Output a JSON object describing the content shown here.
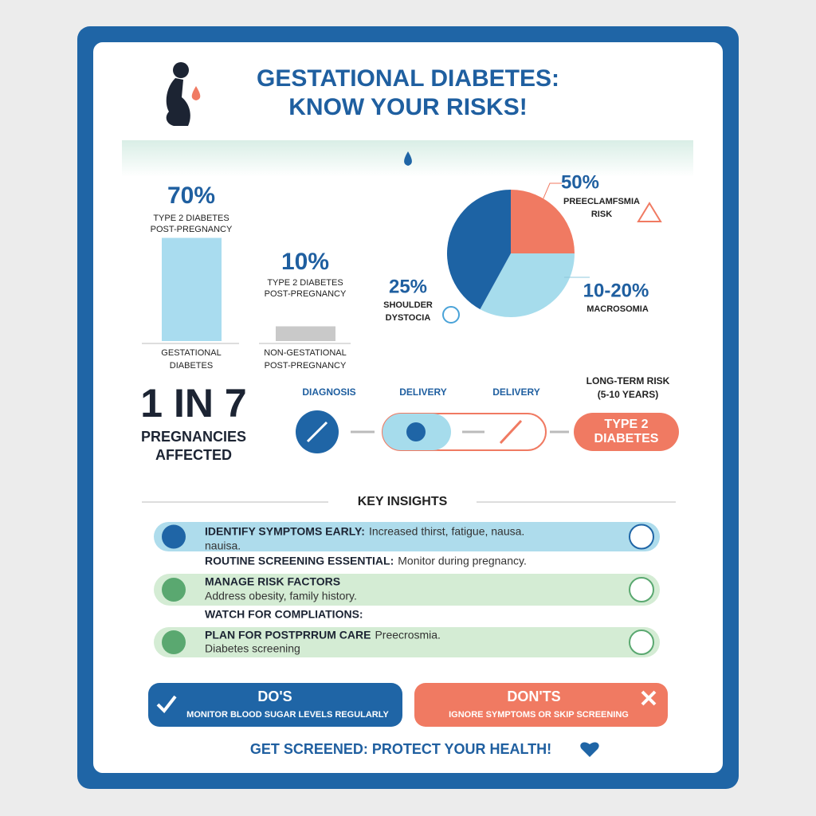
{
  "header": {
    "title_lines": [
      "GESTATIONAL DIABETES:",
      "KNOW YOUR RISKS!"
    ]
  },
  "bar_chart": {
    "type": "bar",
    "ylim": [
      0,
      100
    ],
    "bars": [
      {
        "value": 70,
        "value_label": "70%",
        "caption": [
          "TYPE 2 DIABETES",
          "POST-PREGNANCY"
        ],
        "category": [
          "GESTATIONAL",
          "DIABETES"
        ],
        "color": "#a9dcef"
      },
      {
        "value": 10,
        "value_label": "10%",
        "caption": [
          "TYPE 2 DIABETES",
          "POST-PREGNANCY"
        ],
        "category": [
          "NON-GESTATIONAL",
          "POST-PREGNANCY"
        ],
        "color": "#c9c9c9"
      }
    ]
  },
  "pie_chart": {
    "type": "pie",
    "slices": [
      {
        "value": 25,
        "color": "#f07a62"
      },
      {
        "value": 33,
        "color": "#a6dcec"
      },
      {
        "value": 42,
        "color": "#1d63a4"
      }
    ],
    "annotations": [
      {
        "value_label": "50%",
        "lines": [
          "PREECLAMFSMIA",
          "RISK"
        ]
      },
      {
        "value_label": "10-20%",
        "lines": [
          "MACROSOMIA"
        ]
      },
      {
        "value_label": "25%",
        "lines": [
          "SHOULDER",
          "DYSTOCIA"
        ]
      }
    ]
  },
  "stat": {
    "big": "1 IN 7",
    "lines": [
      "PREGNANCIES",
      "AFFECTED"
    ]
  },
  "timeline": {
    "steps": [
      "DIAGNOSIS",
      "DELIVERY",
      "DELIVERY"
    ],
    "final_label": [
      "LONG-TERM RISK",
      "(5-10 YEARS)"
    ],
    "final_box": [
      "TYPE 2",
      "DIABETES"
    ]
  },
  "insights": {
    "title": "KEY INSIGHTS",
    "items": [
      {
        "bold": "IDENTIFY SYMPTOMS EARLY:",
        "text": "Increased thirst, fatigue, nausa.",
        "second": "nauisa."
      },
      {
        "bold": "ROUTINE SCREENING ESSENTIAL:",
        "text": "Monitor during pregnancy."
      },
      {
        "bold": "MANAGE RISK FACTORS",
        "second": "Address obesity, family history."
      },
      {
        "bold": "WATCH FOR COMPLIATIONS:"
      },
      {
        "bold": "PLAN FOR POSTPRRUM CARE",
        "text": "Preecrosmia.",
        "second": "Diabetes screening"
      }
    ]
  },
  "dos": {
    "title": "DO'S",
    "text": "MONITOR BLOOD SUGAR LEVELS REGULARLY"
  },
  "donts": {
    "title": "DON'TS",
    "text": "IGNORE SYMPTOMS OR SKIP SCREENING"
  },
  "footer": "GET SCREENED: PROTECT YOUR HEALTH!"
}
